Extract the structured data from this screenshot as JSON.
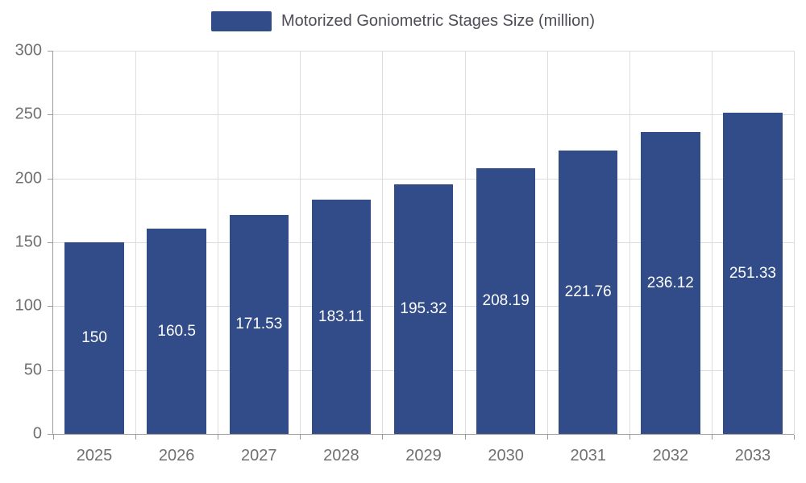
{
  "legend": {
    "label": "Motorized Goniometric Stages Size (million)"
  },
  "chart_data": {
    "type": "bar",
    "title": "Motorized Goniometric Stages Size (million)",
    "categories": [
      "2025",
      "2026",
      "2027",
      "2028",
      "2029",
      "2030",
      "2031",
      "2032",
      "2033"
    ],
    "values": [
      150,
      160.5,
      171.53,
      183.11,
      195.32,
      208.19,
      221.76,
      236.12,
      251.33
    ],
    "labels": [
      "150",
      "160.5",
      "171.53",
      "183.11",
      "195.32",
      "208.19",
      "221.76",
      "236.12",
      "251.33"
    ],
    "xlabel": "",
    "ylabel": "",
    "ylim": [
      0,
      300
    ],
    "yticks": [
      0,
      50,
      100,
      150,
      200,
      250,
      300
    ],
    "grid": true,
    "legend_position": "top",
    "bar_color": "#314c89",
    "label_color": "#ffffff",
    "axis_color": "#9b9b9b",
    "grid_color": "#dcdcdc",
    "tick_label_color": "#707070"
  }
}
